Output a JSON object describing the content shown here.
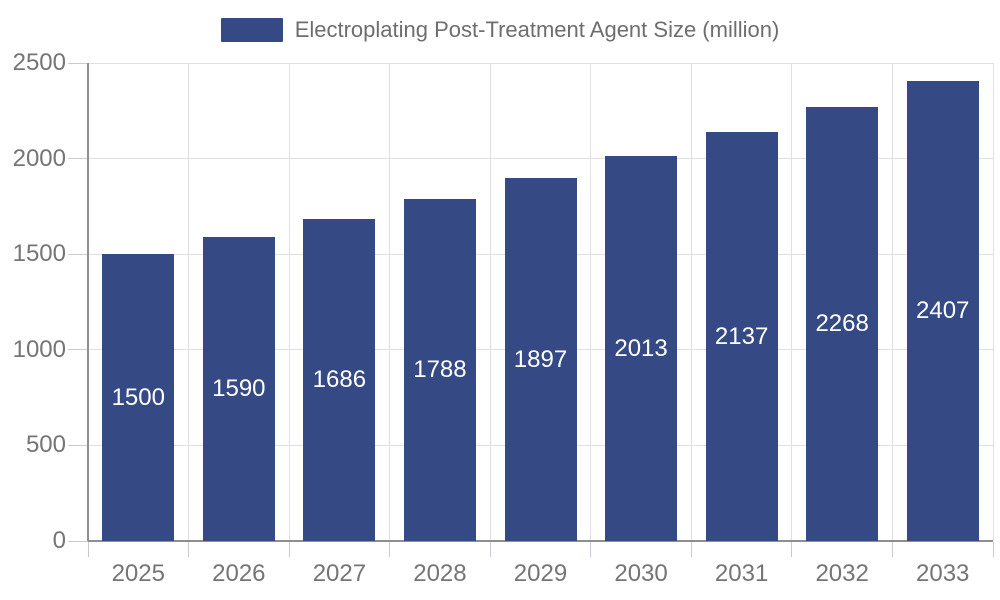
{
  "legend": {
    "label": "Electroplating Post-Treatment Agent Size (million)"
  },
  "chart_data": {
    "type": "bar",
    "title": "Electroplating Post-Treatment Agent Size (million)",
    "categories": [
      "2025",
      "2026",
      "2027",
      "2028",
      "2029",
      "2030",
      "2031",
      "2032",
      "2033"
    ],
    "values": [
      1500,
      1590,
      1686,
      1788,
      1897,
      2013,
      2137,
      2268,
      2407
    ],
    "xlabel": "",
    "ylabel": "",
    "ylim": [
      0,
      2500
    ],
    "yticks": [
      0,
      500,
      1000,
      1500,
      2000,
      2500
    ],
    "grid": true,
    "legend_position": "top",
    "bar_color": "#354a84",
    "bar_label_color": "#ffffff"
  },
  "colors": {
    "background": "#ffffff",
    "bar": "#354a84",
    "grid_line": "#e0e0e0",
    "axis_line": "#8f8f8f",
    "x_tick": "#c6cbdb",
    "y_tick": "#cccccc",
    "tick_label": "#757575",
    "legend_text": "#6e6e6e",
    "bar_label": "#ffffff"
  }
}
